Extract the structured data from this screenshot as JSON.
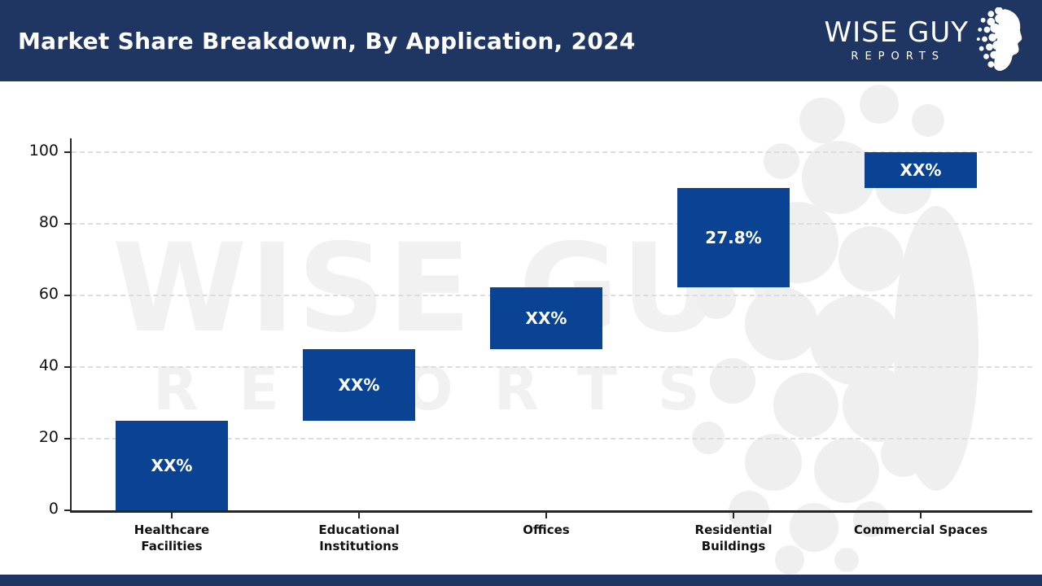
{
  "header": {
    "title": "Market Share Breakdown, By Application, 2024",
    "bg_color": "#203662",
    "text_color": "#ffffff",
    "logo": {
      "line1": "WISE GUY",
      "line2": "REPORTS"
    }
  },
  "watermark": {
    "line1": "WISE GUY",
    "line2": "REPORTS"
  },
  "footer": {
    "bg_color": "#203662"
  },
  "chart_data": {
    "type": "bar",
    "variant": "waterfall",
    "categories": [
      "Healthcare Facilities",
      "Educational Institutions",
      "Offices",
      "Residential Buildings",
      "Commercial Spaces"
    ],
    "category_lines": [
      [
        "Healthcare",
        "Facilities"
      ],
      [
        "Educational",
        "Institutions"
      ],
      [
        "Offices"
      ],
      [
        "Residential",
        "Buildings"
      ],
      [
        "Commercial Spaces"
      ]
    ],
    "segments": [
      {
        "category": "Healthcare Facilities",
        "start": 0,
        "end": 25,
        "label": "XX%"
      },
      {
        "category": "Educational Institutions",
        "start": 25,
        "end": 45,
        "label": "XX%"
      },
      {
        "category": "Offices",
        "start": 45,
        "end": 62.2,
        "label": "XX%"
      },
      {
        "category": "Residential Buildings",
        "start": 62.2,
        "end": 90,
        "label": "27.8%"
      },
      {
        "category": "Commercial Spaces",
        "start": 90,
        "end": 100,
        "label": "XX%"
      }
    ],
    "yticks": [
      0,
      20,
      40,
      60,
      80,
      100
    ],
    "ylim": [
      0,
      100
    ],
    "xlabel": "",
    "ylabel": "",
    "grid": {
      "horizontal": true,
      "style": "dashed",
      "color": "#dcdcdc"
    },
    "legend": "none",
    "bar_color": "#0a4294",
    "bar_label_color": "#ffffff"
  }
}
